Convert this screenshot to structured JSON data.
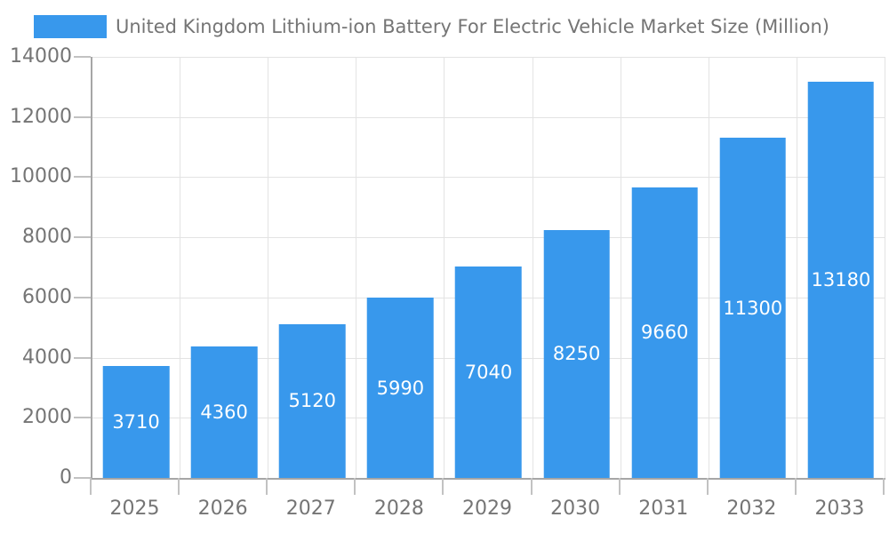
{
  "legend": {
    "series_label": "United Kingdom Lithium-ion Battery For Electric Vehicle Market Size (Million)"
  },
  "chart_data": {
    "type": "bar",
    "title": "United Kingdom Lithium-ion Battery For Electric Vehicle Market Size (Million)",
    "categories": [
      "2025",
      "2026",
      "2027",
      "2028",
      "2029",
      "2030",
      "2031",
      "2032",
      "2033"
    ],
    "values": [
      3710,
      4360,
      5120,
      5990,
      7040,
      8250,
      9660,
      11300,
      13180
    ],
    "xlabel": "",
    "ylabel": "",
    "ylim": [
      0,
      14000
    ],
    "yticks": [
      0,
      2000,
      4000,
      6000,
      8000,
      10000,
      12000,
      14000
    ],
    "grid": true,
    "legend_position": "top-left",
    "colors": {
      "bar": "#3898ec",
      "value_label": "#ffffff",
      "axis_text": "#757575",
      "grid_line": "#e3e3e3",
      "axis_line": "#a6a6a6",
      "tick": "#c2c2c2",
      "background": "#ffffff"
    }
  }
}
